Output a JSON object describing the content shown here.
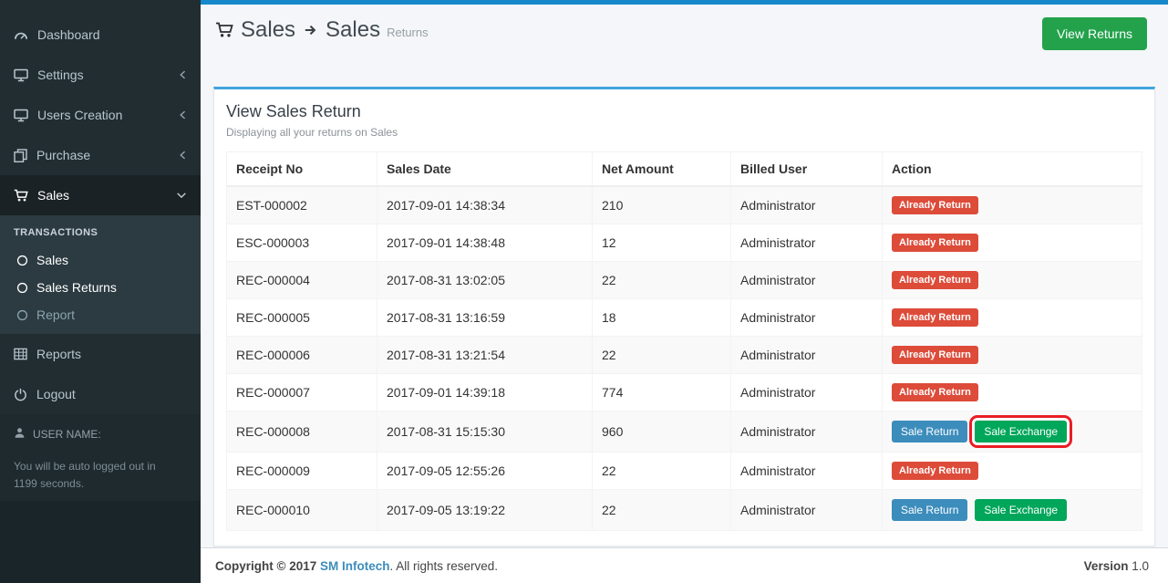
{
  "sidebar": {
    "dashboard": "Dashboard",
    "settings": "Settings",
    "users_creation": "Users Creation",
    "purchase": "Purchase",
    "sales": "Sales",
    "transactions": "TRANSACTIONS",
    "sub_sales": "Sales",
    "sub_sales_returns": "Sales Returns",
    "sub_report": "Report",
    "reports": "Reports",
    "logout": "Logout",
    "user_label": "USER NAME:",
    "auto_logout_notice": "You will be auto logged out in 1199 seconds."
  },
  "header": {
    "section": "Sales",
    "page": "Sales",
    "page_suffix": "Returns",
    "view_returns_button": "View Returns"
  },
  "panel": {
    "title": "View Sales Return",
    "subtitle": "Displaying all your returns on Sales"
  },
  "table": {
    "headers": [
      "Receipt No",
      "Sales Date",
      "Net Amount",
      "Billed User",
      "Action"
    ],
    "rows": [
      {
        "receipt": "EST-000002",
        "date": "2017-09-01 14:38:34",
        "amount": "210",
        "user": "Administrator",
        "actions": [
          {
            "label": "Already Return",
            "style": "danger"
          }
        ]
      },
      {
        "receipt": "ESC-000003",
        "date": "2017-09-01 14:38:48",
        "amount": "12",
        "user": "Administrator",
        "actions": [
          {
            "label": "Already Return",
            "style": "danger"
          }
        ]
      },
      {
        "receipt": "REC-000004",
        "date": "2017-08-31 13:02:05",
        "amount": "22",
        "user": "Administrator",
        "actions": [
          {
            "label": "Already Return",
            "style": "danger"
          }
        ]
      },
      {
        "receipt": "REC-000005",
        "date": "2017-08-31 13:16:59",
        "amount": "18",
        "user": "Administrator",
        "actions": [
          {
            "label": "Already Return",
            "style": "danger"
          }
        ]
      },
      {
        "receipt": "REC-000006",
        "date": "2017-08-31 13:21:54",
        "amount": "22",
        "user": "Administrator",
        "actions": [
          {
            "label": "Already Return",
            "style": "danger"
          }
        ]
      },
      {
        "receipt": "REC-000007",
        "date": "2017-09-01 14:39:18",
        "amount": "774",
        "user": "Administrator",
        "actions": [
          {
            "label": "Already Return",
            "style": "danger"
          }
        ]
      },
      {
        "receipt": "REC-000008",
        "date": "2017-08-31 15:15:30",
        "amount": "960",
        "user": "Administrator",
        "actions": [
          {
            "label": "Sale Return",
            "style": "primary"
          },
          {
            "label": "Sale Exchange",
            "style": "success",
            "highlighted": true
          }
        ]
      },
      {
        "receipt": "REC-000009",
        "date": "2017-09-05 12:55:26",
        "amount": "22",
        "user": "Administrator",
        "actions": [
          {
            "label": "Already Return",
            "style": "danger"
          }
        ]
      },
      {
        "receipt": "REC-000010",
        "date": "2017-09-05 13:19:22",
        "amount": "22",
        "user": "Administrator",
        "actions": [
          {
            "label": "Sale Return",
            "style": "primary"
          },
          {
            "label": "Sale Exchange",
            "style": "success"
          }
        ]
      }
    ]
  },
  "footer": {
    "prefix": "Copyright © 2017",
    "company": "SM Infotech",
    "suffix": ". All rights reserved.",
    "version_label": "Version",
    "version_value": "1.0"
  },
  "colors": {
    "top_accent_blue": "#1789ca",
    "card_border_blue": "#41a3dd",
    "danger_red": "#dd4b39",
    "primary_blue": "#3c8dbc",
    "success_green": "#00a65a",
    "view_returns_green": "#23a24b",
    "annotation_red": "#ea1d25",
    "sidebar_bg": "#222d32"
  }
}
